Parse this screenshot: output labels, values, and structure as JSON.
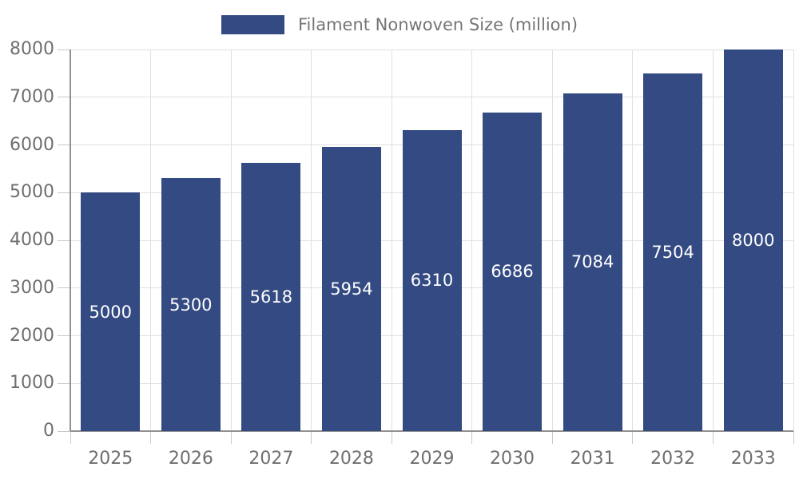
{
  "legend": {
    "label": "Filament Nonwoven Size (million)",
    "swatch_color": "#344A82"
  },
  "chart_data": {
    "type": "bar",
    "title": "Filament Nonwoven Size (million)",
    "categories": [
      "2025",
      "2026",
      "2027",
      "2028",
      "2029",
      "2030",
      "2031",
      "2032",
      "2033"
    ],
    "series": [
      {
        "name": "Filament Nonwoven Size (million)",
        "values": [
          5000,
          5300,
          5618,
          5954,
          6310,
          6686,
          7084,
          7504,
          8000
        ]
      }
    ],
    "value_labels": [
      "5000",
      "5300",
      "5618",
      "5954",
      "6310",
      "6686",
      "7084",
      "7504",
      "8000"
    ],
    "xlabel": "",
    "ylabel": "",
    "ylim": [
      0,
      8000
    ],
    "ytick_interval": 1000,
    "yticks": [
      "0",
      "1000",
      "2000",
      "3000",
      "4000",
      "5000",
      "6000",
      "7000",
      "8000"
    ],
    "grid": true,
    "legend_position": "top-center",
    "colors": {
      "bar": "#344A82",
      "gridline": "#E0E0E0",
      "axis_line": "#919191",
      "tick": "#C9C9C9",
      "axis_text": "#6F6F6F",
      "value_text": "#FFFFFF",
      "background": "#FFFFFF"
    }
  }
}
